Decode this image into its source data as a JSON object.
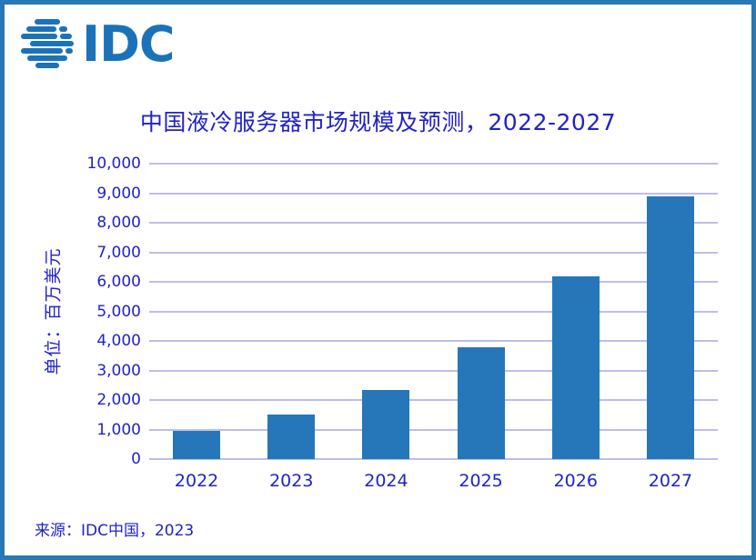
{
  "logo": {
    "text": "IDC",
    "color": "#1B72B8",
    "globe_icon": "striped-globe"
  },
  "chart_data": {
    "type": "bar",
    "title": "中国液冷服务器市场规模及预测，2022-2027",
    "categories": [
      "2022",
      "2023",
      "2024",
      "2025",
      "2026",
      "2027"
    ],
    "values": [
      950,
      1500,
      2350,
      3800,
      6200,
      8900
    ],
    "xlabel": "",
    "ylabel": "单位：百万美元",
    "ylim": [
      0,
      10000
    ],
    "ytick_step": 1000,
    "ytick_format": "thousands-comma",
    "grid": true,
    "legend": "none",
    "colors": {
      "bar": "#2577B9",
      "grid": "#BEBEEB",
      "text": "#2222C8",
      "border": "#2878B4",
      "logo": "#1B72B8"
    }
  },
  "footer": {
    "source": "来源：IDC中国，2023"
  }
}
